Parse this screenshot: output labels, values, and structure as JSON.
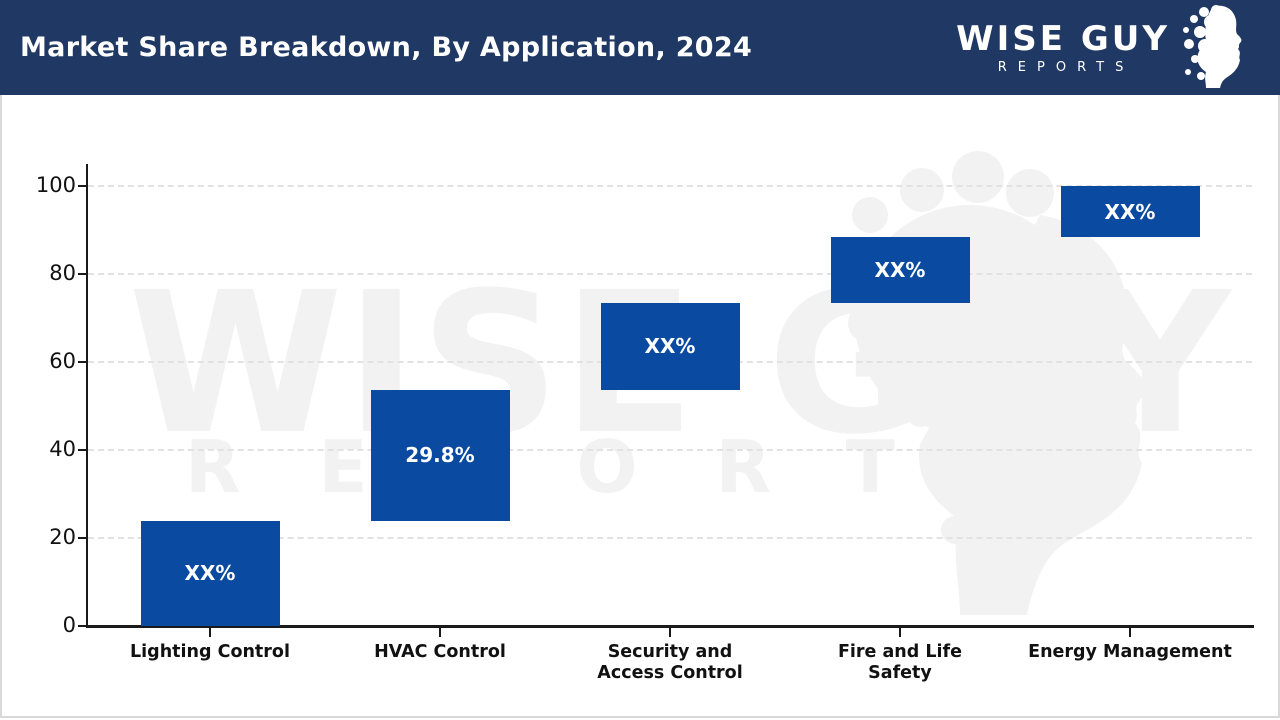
{
  "header": {
    "title": "Market Share Breakdown, By Application, 2024",
    "bg_color": "#203864",
    "logo": {
      "line1": "WISE GUY",
      "line2": "REPORTS",
      "icon": "dotted-head-profile"
    }
  },
  "watermark": {
    "line1": "WISE GUY",
    "line2": "REPORTS",
    "color": "#f2f2f2"
  },
  "chart_data": {
    "type": "bar",
    "subtype": "floating-waterfall",
    "title": "Market Share Breakdown, By Application, 2024",
    "xlabel": "",
    "ylabel": "",
    "ylim": [
      0,
      105
    ],
    "yticks": [
      0,
      20,
      40,
      60,
      80,
      100
    ],
    "grid": "horizontal-dashed",
    "bar_color": "#0a4ba1",
    "label_color": "#ffffff",
    "categories": [
      "Lighting Control",
      "HVAC Control",
      "Security and Access Control",
      "Fire and Life Safety",
      "Energy Management"
    ],
    "category_label_lines": [
      [
        "Lighting Control"
      ],
      [
        "HVAC Control"
      ],
      [
        "Security and",
        "Access Control"
      ],
      [
        "Fire and Life",
        "Safety"
      ],
      [
        "Energy Management"
      ]
    ],
    "segments": [
      {
        "category": "Lighting Control",
        "start": 0,
        "end": 23.9,
        "value": 23.9,
        "label": "XX%"
      },
      {
        "category": "HVAC Control",
        "start": 23.9,
        "end": 53.7,
        "value": 29.8,
        "label": "29.8%"
      },
      {
        "category": "Security and Access Control",
        "start": 53.7,
        "end": 73.5,
        "value": 19.8,
        "label": "XX%"
      },
      {
        "category": "Fire and Life Safety",
        "start": 73.5,
        "end": 88.4,
        "value": 14.9,
        "label": "XX%"
      },
      {
        "category": "Energy Management",
        "start": 88.4,
        "end": 100,
        "value": 11.6,
        "label": "XX%"
      }
    ]
  }
}
